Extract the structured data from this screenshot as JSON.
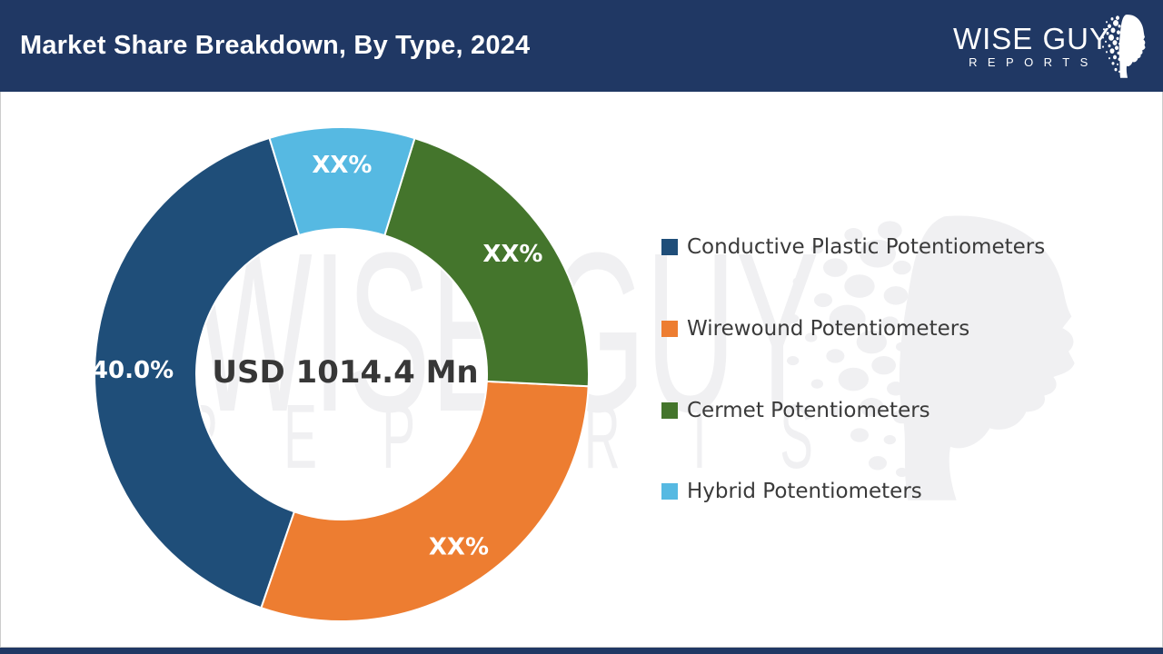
{
  "header": {
    "title": "Market Share Breakdown, By Type, 2024",
    "logo": {
      "line1": "WISE GUY",
      "line2": "REPORTS"
    }
  },
  "watermark": {
    "line1": "WISE GUY",
    "line2": "REPORTS"
  },
  "colors": {
    "header_bg": "#203864",
    "watermark": "#F0F0F2",
    "dark_text": "#373737",
    "legend_text": "#3A3A3A"
  },
  "chart_data": {
    "type": "pie",
    "subtype": "donut",
    "title": "Market Share Breakdown, By Type, 2024",
    "center_label": "USD 1014.4 Mn",
    "legend_position": "right",
    "start_angle_deg": 107,
    "direction": "counterclockwise",
    "segments": [
      {
        "label": "Conductive Plastic Potentiometers",
        "value_label": "40.0%",
        "percent": 40.0,
        "color": "#1F4E79"
      },
      {
        "label": "Wirewound Potentiometers",
        "value_label": "XX%",
        "percent": 29.5,
        "color": "#ED7D31"
      },
      {
        "label": "Cermet Potentiometers",
        "value_label": "XX%",
        "percent": 21.0,
        "color": "#44752C"
      },
      {
        "label": "Hybrid Potentiometers",
        "value_label": "XX%",
        "percent": 9.5,
        "color": "#56B9E2"
      }
    ]
  }
}
